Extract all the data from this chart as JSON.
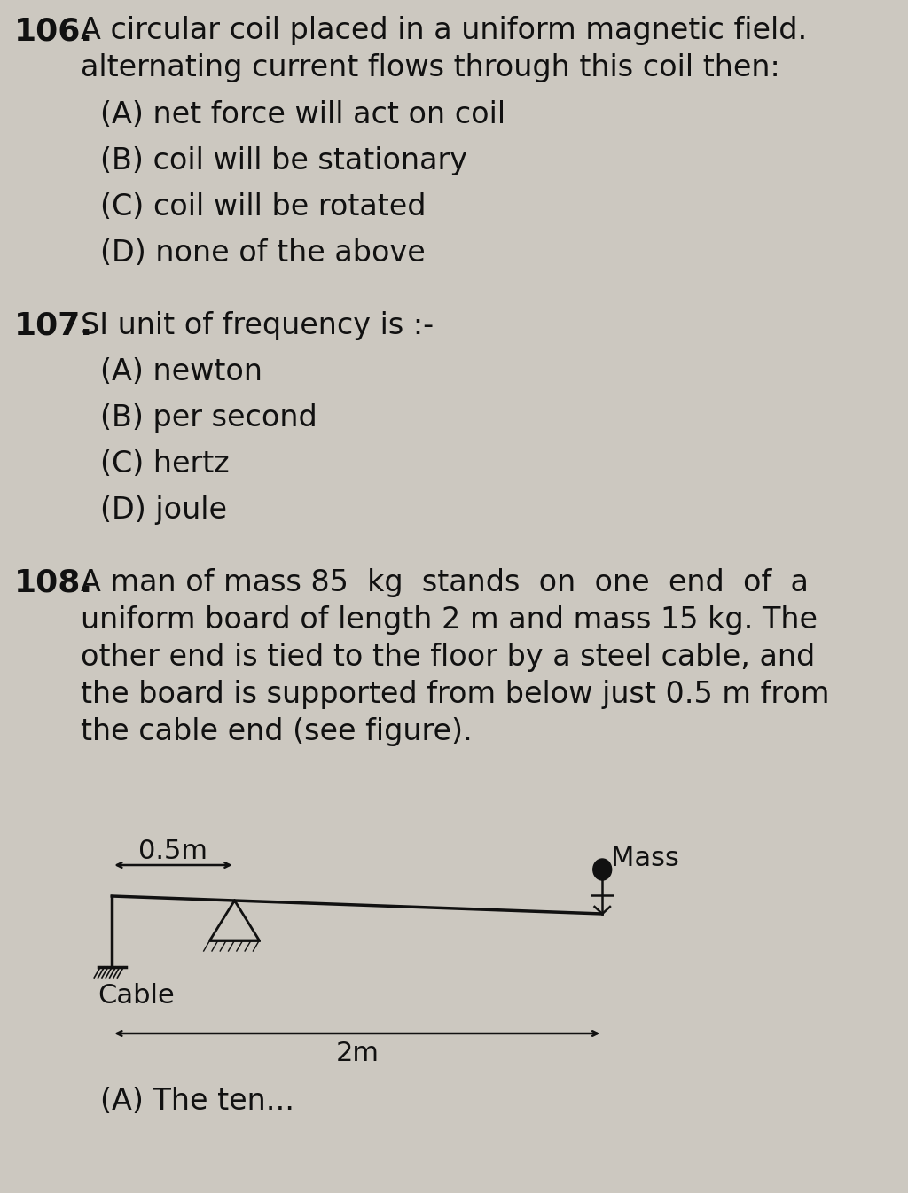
{
  "bg_color": "#ccc8c0",
  "text_color": "#111111",
  "q106_num": "106.",
  "q106_line1": "A circular coil placed in a uniform magnetic field.",
  "q106_line2": "alternating current flows through this coil then:",
  "q106_options": [
    "(A) net force will act on coil",
    "(B) coil will be stationary",
    "(C) coil will be rotated",
    "(D) none of the above"
  ],
  "q107_num": "107.",
  "q107_line1": "SI unit of frequency is :-",
  "q107_options": [
    "(A) newton",
    "(B) per second",
    "(C) hertz",
    "(D) joule"
  ],
  "q108_num": "108.",
  "q108_lines": [
    "A man of mass 85  kg  stands  on  one  end  of  a",
    "uniform board of length 2 m and mass 15 kg. The",
    "other end is tied to the floor by a steel cable, and",
    "the board is supported from below just 0.5 m from",
    "the cable end (see figure)."
  ],
  "fig_label_05m": "0.5m",
  "fig_label_mass": "Mass",
  "fig_label_cable": "Cable",
  "fig_label_2m": "2m",
  "bottom_partial": "(A) The ten...",
  "font_size_num": 26,
  "font_size_text": 24,
  "font_size_option": 24,
  "font_size_fig": 22
}
